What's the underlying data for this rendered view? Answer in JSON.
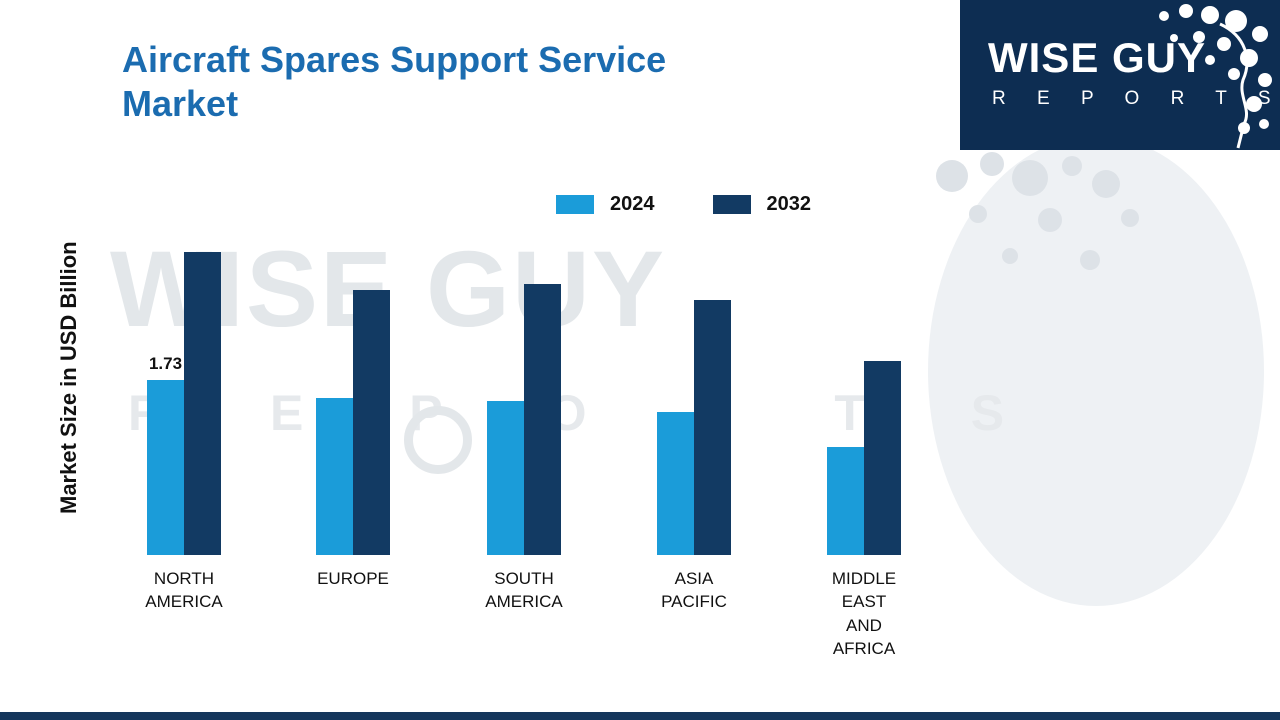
{
  "title": "Aircraft Spares Support Service Market",
  "logo": {
    "line1": "WISE GUY",
    "line2": "R E P O R T S"
  },
  "watermark": {
    "line1": "WISE GUY",
    "line2": "R E P O R T S"
  },
  "colors": {
    "title_blue": "#1b6cb0",
    "logo_bg": "#0d2d52",
    "series_2024": "#1b9cd9",
    "series_2032": "#123a63",
    "footer": "#14365c"
  },
  "chart_data": {
    "type": "bar",
    "title": "Aircraft Spares Support Service Market",
    "xlabel": "",
    "ylabel": "Market Size in USD Billion",
    "ylim": [
      0,
      3.3
    ],
    "grid": false,
    "legend_position": "top",
    "categories": [
      "NORTH AMERICA",
      "EUROPE",
      "SOUTH AMERICA",
      "ASIA PACIFIC",
      "MIDDLE EAST AND AFRICA"
    ],
    "categories_display": [
      "NORTH\nAMERICA",
      "EUROPE",
      "SOUTH\nAMERICA",
      "ASIA\nPACIFIC",
      "MIDDLE\nEAST\nAND\nAFRICA"
    ],
    "series": [
      {
        "name": "2024",
        "color": "#1b9cd9",
        "values": [
          1.73,
          1.55,
          1.52,
          1.42,
          1.07
        ],
        "labels": [
          "1.73",
          "",
          "",
          "",
          ""
        ]
      },
      {
        "name": "2032",
        "color": "#123a63",
        "values": [
          3.0,
          2.62,
          2.68,
          2.52,
          1.92
        ],
        "labels": [
          "",
          "",
          "",
          "",
          ""
        ]
      }
    ]
  }
}
